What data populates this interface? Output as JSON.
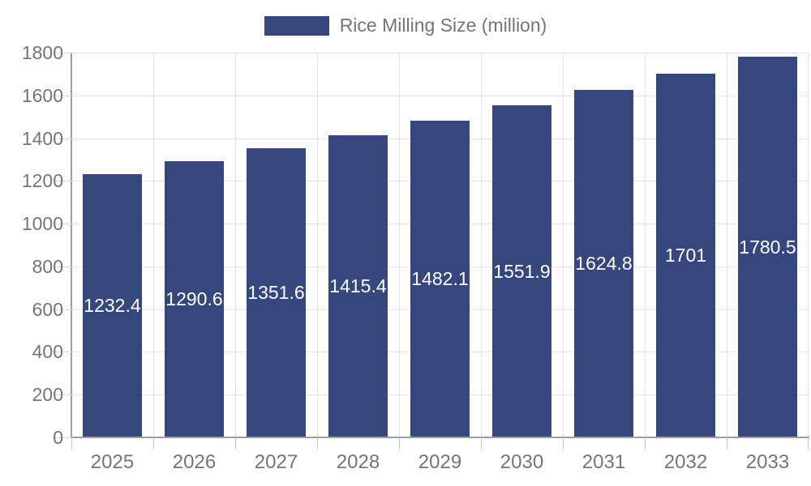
{
  "legend": {
    "label": "Rice Milling Size (million)"
  },
  "chart_data": {
    "type": "bar",
    "title": "",
    "xlabel": "",
    "ylabel": "",
    "legend_entries": [
      "Rice Milling Size (million)"
    ],
    "legend_position": "top-center",
    "categories": [
      "2025",
      "2026",
      "2027",
      "2028",
      "2029",
      "2030",
      "2031",
      "2032",
      "2033"
    ],
    "series": [
      {
        "name": "Rice Milling Size (million)",
        "values": [
          1232.4,
          1290.6,
          1351.6,
          1415.4,
          1482.1,
          1551.9,
          1624.8,
          1701,
          1780.5
        ],
        "data_labels": [
          "1232.4",
          "1290.6",
          "1351.6",
          "1415.4",
          "1482.1",
          "1551.9",
          "1624.8",
          "1701",
          "1780.5"
        ],
        "data_label_position": "inside-center"
      }
    ],
    "ylim": [
      0,
      1800
    ],
    "yticks": [
      0,
      200,
      400,
      600,
      800,
      1000,
      1200,
      1400,
      1600,
      1800
    ],
    "grid": true,
    "colors": {
      "bar": "#35477d",
      "axis_text": "#757575",
      "bar_label": "#ffffff",
      "gridline": "#e2e2e8",
      "axis_line": "#9a9ea6",
      "y_tick": "#dadce2",
      "x_tick": "#c4c7cd",
      "background": "#ffffff"
    }
  }
}
